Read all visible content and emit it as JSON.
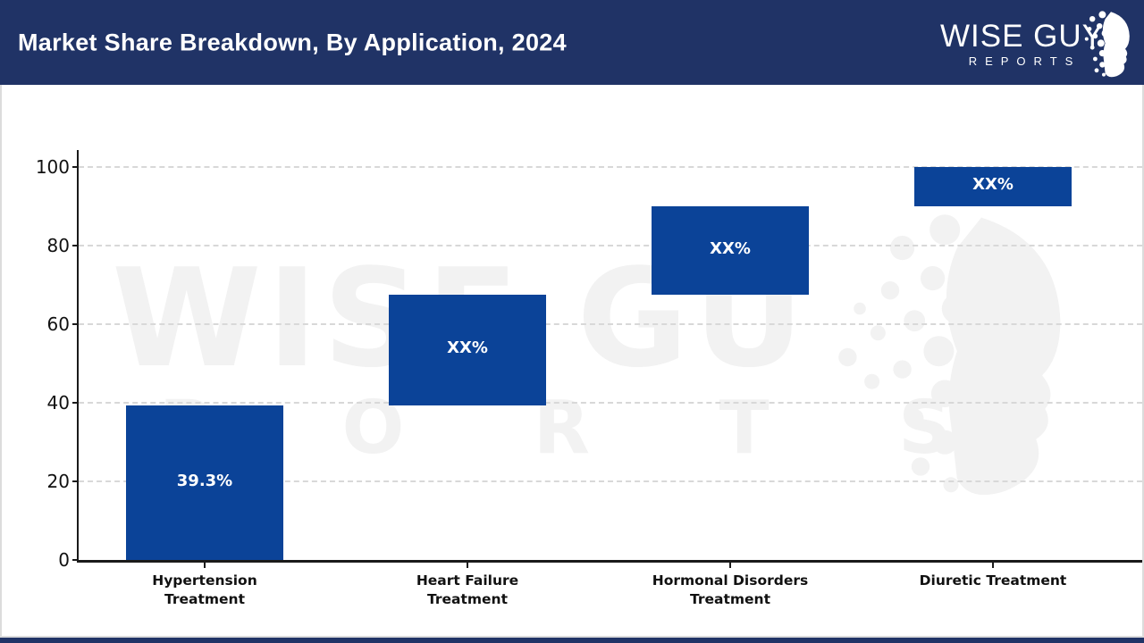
{
  "header": {
    "title": "Market Share Breakdown, By Application, 2024",
    "logo": {
      "line1": "WISE GUY",
      "line2": "REPORTS"
    }
  },
  "watermark": {
    "line1": "WISE GU",
    "line2": "P O R T S"
  },
  "colors": {
    "header_bg": "#203366",
    "footer_bg": "#203366",
    "bar": "#0b4398",
    "bar_label_text": "#ffffff",
    "grid": "#d8d8d8",
    "axis": "#1a1a1a",
    "watermark": "#f2f2f2"
  },
  "chart_data": {
    "type": "bar",
    "subtype": "waterfall",
    "title": "Market Share Breakdown, By Application, 2024",
    "categories": [
      "Hypertension\nTreatment",
      "Heart Failure\nTreatment",
      "Hormonal Disorders\nTreatment",
      "Diuretic Treatment"
    ],
    "values": [
      39.3,
      28.2,
      22.5,
      10.0
    ],
    "cumulative_start": [
      0,
      39.3,
      67.5,
      90
    ],
    "cumulative_end": [
      39.3,
      67.5,
      90,
      100
    ],
    "bar_labels": [
      "39.3%",
      "XX%",
      "XX%",
      "XX%"
    ],
    "xlabel": "",
    "ylabel": "",
    "ylim": [
      0,
      100
    ],
    "yticks": [
      0,
      20,
      40,
      60,
      80,
      100
    ],
    "grid": "horizontal-dashed",
    "legend": "none"
  }
}
